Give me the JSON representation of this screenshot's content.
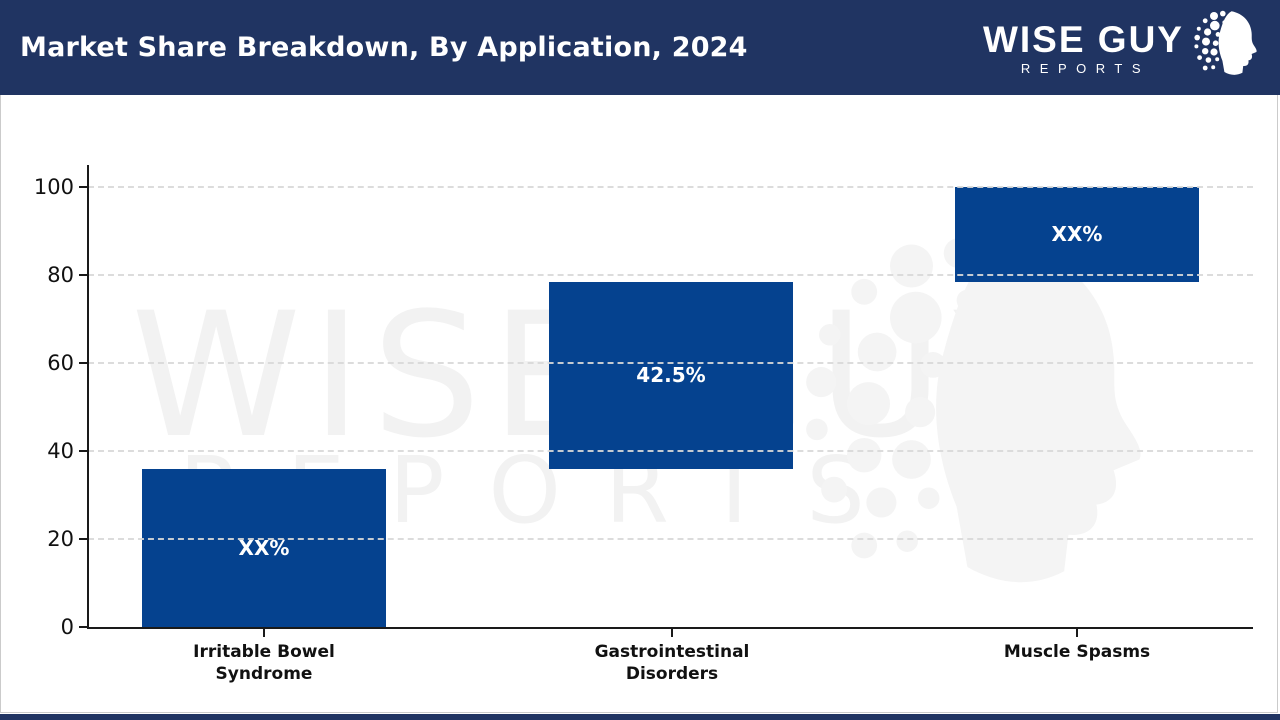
{
  "header": {
    "title": "Market Share Breakdown, By Application, 2024",
    "logo": {
      "line1": "WISE GUY",
      "line2": "REPORTS"
    }
  },
  "watermark": {
    "line1": "WISE GUY",
    "line2": "REPORTS"
  },
  "colors": {
    "header_bg": "#203462",
    "footer_bg": "#203462",
    "bar": "#05428f",
    "bar_label": "#ffffff",
    "axis": "#1a1a1a",
    "gridline": "#d9d9d9",
    "watermark": "#f2f2f2",
    "frame_border": "#cbcbcb"
  },
  "chart_data": {
    "type": "bar",
    "subtype": "waterfall",
    "title": "Market Share Breakdown, By Application, 2024",
    "categories": [
      "Irritable Bowel\nSyndrome",
      "Gastrointestinal\nDisorders",
      "Muscle Spasms"
    ],
    "series": [
      {
        "category": "Irritable Bowel Syndrome",
        "start": 0,
        "end": 36,
        "value": 36,
        "label": "XX%"
      },
      {
        "category": "Gastrointestinal Disorders",
        "start": 36,
        "end": 78.5,
        "value": 42.5,
        "label": "42.5%"
      },
      {
        "category": "Muscle Spasms",
        "start": 78.5,
        "end": 100,
        "value": 21.5,
        "label": "XX%"
      }
    ],
    "xlabel": "",
    "ylabel": "",
    "yticks": [
      0,
      20,
      40,
      60,
      80,
      100
    ],
    "ylim": [
      0,
      105
    ],
    "grid": "horizontal-dashed",
    "legend": null,
    "bar_value_suffix": "%"
  }
}
